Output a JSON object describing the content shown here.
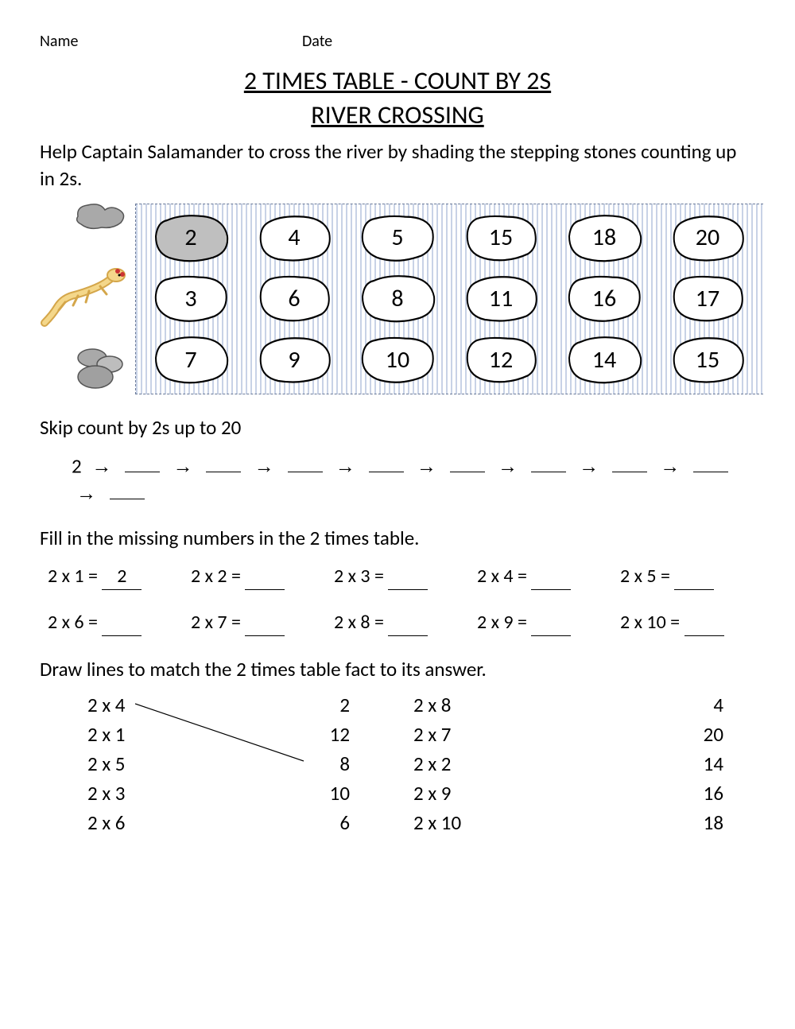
{
  "header": {
    "name": "Name",
    "date": "Date"
  },
  "title1": "2 TIMES TABLE - COUNT BY 2S",
  "title2": "RIVER CROSSING",
  "instructions": "Help Captain Salamander to cross the river by shading the stepping stones counting up in 2s.",
  "river": {
    "stones": [
      {
        "v": "2",
        "shaded": true
      },
      {
        "v": "4",
        "shaded": false
      },
      {
        "v": "5",
        "shaded": false
      },
      {
        "v": "15",
        "shaded": false
      },
      {
        "v": "18",
        "shaded": false
      },
      {
        "v": "20",
        "shaded": false
      },
      {
        "v": "3",
        "shaded": false
      },
      {
        "v": "6",
        "shaded": false
      },
      {
        "v": "8",
        "shaded": false
      },
      {
        "v": "11",
        "shaded": false
      },
      {
        "v": "16",
        "shaded": false
      },
      {
        "v": "17",
        "shaded": false
      },
      {
        "v": "7",
        "shaded": false
      },
      {
        "v": "9",
        "shaded": false
      },
      {
        "v": "10",
        "shaded": false
      },
      {
        "v": "12",
        "shaded": false
      },
      {
        "v": "14",
        "shaded": false
      },
      {
        "v": "15",
        "shaded": false
      }
    ],
    "stone_fill": "#ffffff",
    "stone_shaded_fill": "#bfbfbf",
    "stone_stroke": "#000000",
    "river_border": "#6a7a99",
    "rock_fill": "#a9a9a9",
    "rock_stroke": "#555555"
  },
  "skip": {
    "label": "Skip count by 2s up to 20",
    "start": "2",
    "blanks": 9
  },
  "fill": {
    "label": "Fill in the missing numbers in the 2 times table.",
    "items": [
      {
        "q": "2 x 1 =",
        "a": "2"
      },
      {
        "q": "2 x 2 =",
        "a": ""
      },
      {
        "q": "2 x 3 =",
        "a": ""
      },
      {
        "q": "2 x 4 =",
        "a": ""
      },
      {
        "q": "2 x 5 =",
        "a": ""
      },
      {
        "q": "2 x 6 =",
        "a": ""
      },
      {
        "q": "2 x 7 =",
        "a": ""
      },
      {
        "q": "2 x 8 =",
        "a": ""
      },
      {
        "q": "2 x 9 =",
        "a": ""
      },
      {
        "q": "2 x 10 =",
        "a": ""
      }
    ]
  },
  "match": {
    "label": "Draw lines to match the 2 times table fact to its answer.",
    "left": {
      "q": [
        "2 x 4",
        "2 x 1",
        "2 x 5",
        "2 x 3",
        "2 x 6"
      ],
      "a": [
        "2",
        "12",
        "8",
        "10",
        "6"
      ]
    },
    "right": {
      "q": [
        "2 x 8",
        "2 x 7",
        "2 x 2",
        "2 x 9",
        "2 x 10"
      ],
      "a": [
        "4",
        "20",
        "14",
        "16",
        "18"
      ]
    },
    "example_line": {
      "from_row": 0,
      "to_row": 2
    }
  }
}
